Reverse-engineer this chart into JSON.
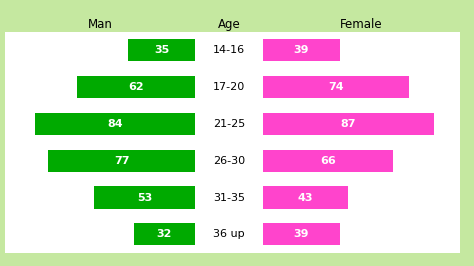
{
  "age_groups": [
    "36 up",
    "31-35",
    "26-30",
    "21-25",
    "17-20",
    "14-16"
  ],
  "man_values": [
    32,
    53,
    77,
    84,
    62,
    35
  ],
  "female_values": [
    39,
    43,
    66,
    87,
    74,
    39
  ],
  "man_color": "#00AA00",
  "female_color": "#FF44CC",
  "label_color": "#FFFFFF",
  "man_header": "Man",
  "age_header": "Age",
  "female_header": "Female",
  "background_color": "#FFFFFF",
  "chart_bg": "#FFFFFF",
  "label_fontsize": 8,
  "header_fontsize": 8.5,
  "value_fontsize": 8
}
